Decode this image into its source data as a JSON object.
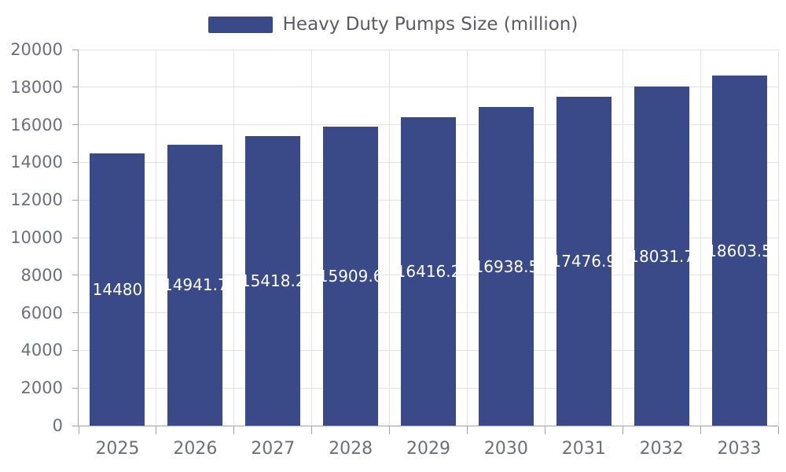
{
  "legend": {
    "label": "Heavy Duty Pumps Size (million)"
  },
  "colors": {
    "bar": "#3A4A88",
    "bar_label": "#FFFFFF",
    "axis_label": "#6E7079",
    "legend_text": "#5A5C63",
    "gridline": "#E2E3E8",
    "axis_line": "#A0A2A8",
    "background": "#FFFFFF"
  },
  "chart_data": {
    "type": "bar",
    "title": "Heavy Duty Pumps Size (million)",
    "categories": [
      "2025",
      "2026",
      "2027",
      "2028",
      "2029",
      "2030",
      "2031",
      "2032",
      "2033"
    ],
    "values": [
      14480,
      14941.7,
      15418.2,
      15909.6,
      16416.2,
      16938.5,
      17476.9,
      18031.7,
      18603.5
    ],
    "bar_labels": [
      "14480",
      "14941.7",
      "15418.2",
      "15909.6",
      "16416.2",
      "16938.5",
      "17476.9",
      "18031.7",
      "18603.5"
    ],
    "series": [
      {
        "name": "Heavy Duty Pumps Size (million)",
        "values": [
          14480,
          14941.7,
          15418.2,
          15909.6,
          16416.2,
          16938.5,
          17476.9,
          18031.7,
          18603.5
        ]
      }
    ],
    "xlabel": "",
    "ylabel": "",
    "ylim": [
      0,
      20000
    ],
    "y_ticks": [
      0,
      2000,
      4000,
      6000,
      8000,
      10000,
      12000,
      14000,
      16000,
      18000,
      20000
    ],
    "grid": true,
    "grid_vertical": true,
    "legend_position": "top-center",
    "bar_label_position": "inside-center"
  }
}
